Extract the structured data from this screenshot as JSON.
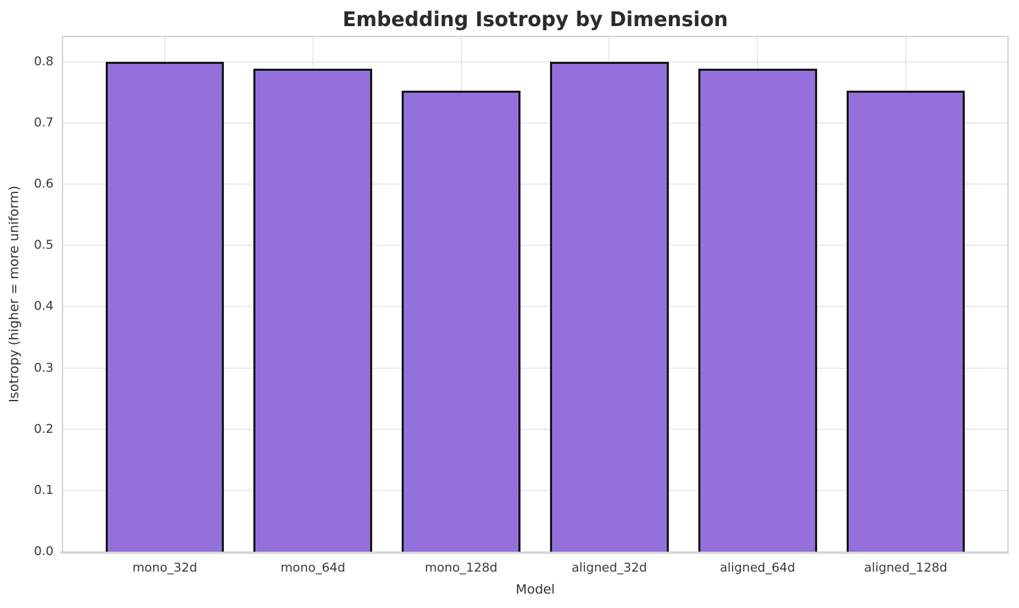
{
  "chart_data": {
    "type": "bar",
    "title": "Embedding Isotropy by Dimension",
    "xlabel": "Model",
    "ylabel": "Isotropy (higher = more uniform)",
    "categories": [
      "mono_32d",
      "mono_64d",
      "mono_128d",
      "aligned_32d",
      "aligned_64d",
      "aligned_128d"
    ],
    "values": [
      0.8,
      0.788,
      0.753,
      0.8,
      0.788,
      0.753
    ],
    "ytick_labels": [
      "0.0",
      "0.1",
      "0.2",
      "0.3",
      "0.4",
      "0.5",
      "0.6",
      "0.7",
      "0.8"
    ],
    "ylim": [
      0.0,
      0.84
    ],
    "grid": true,
    "legend_position": "none",
    "bar_color": "#9370DB",
    "bar_edge_color": "#151515",
    "grid_color": "#ebebeb",
    "spine_color": "#d4d4d4",
    "tick_text_color": "#3a3a3a",
    "title_color": "#2b2b2b"
  }
}
